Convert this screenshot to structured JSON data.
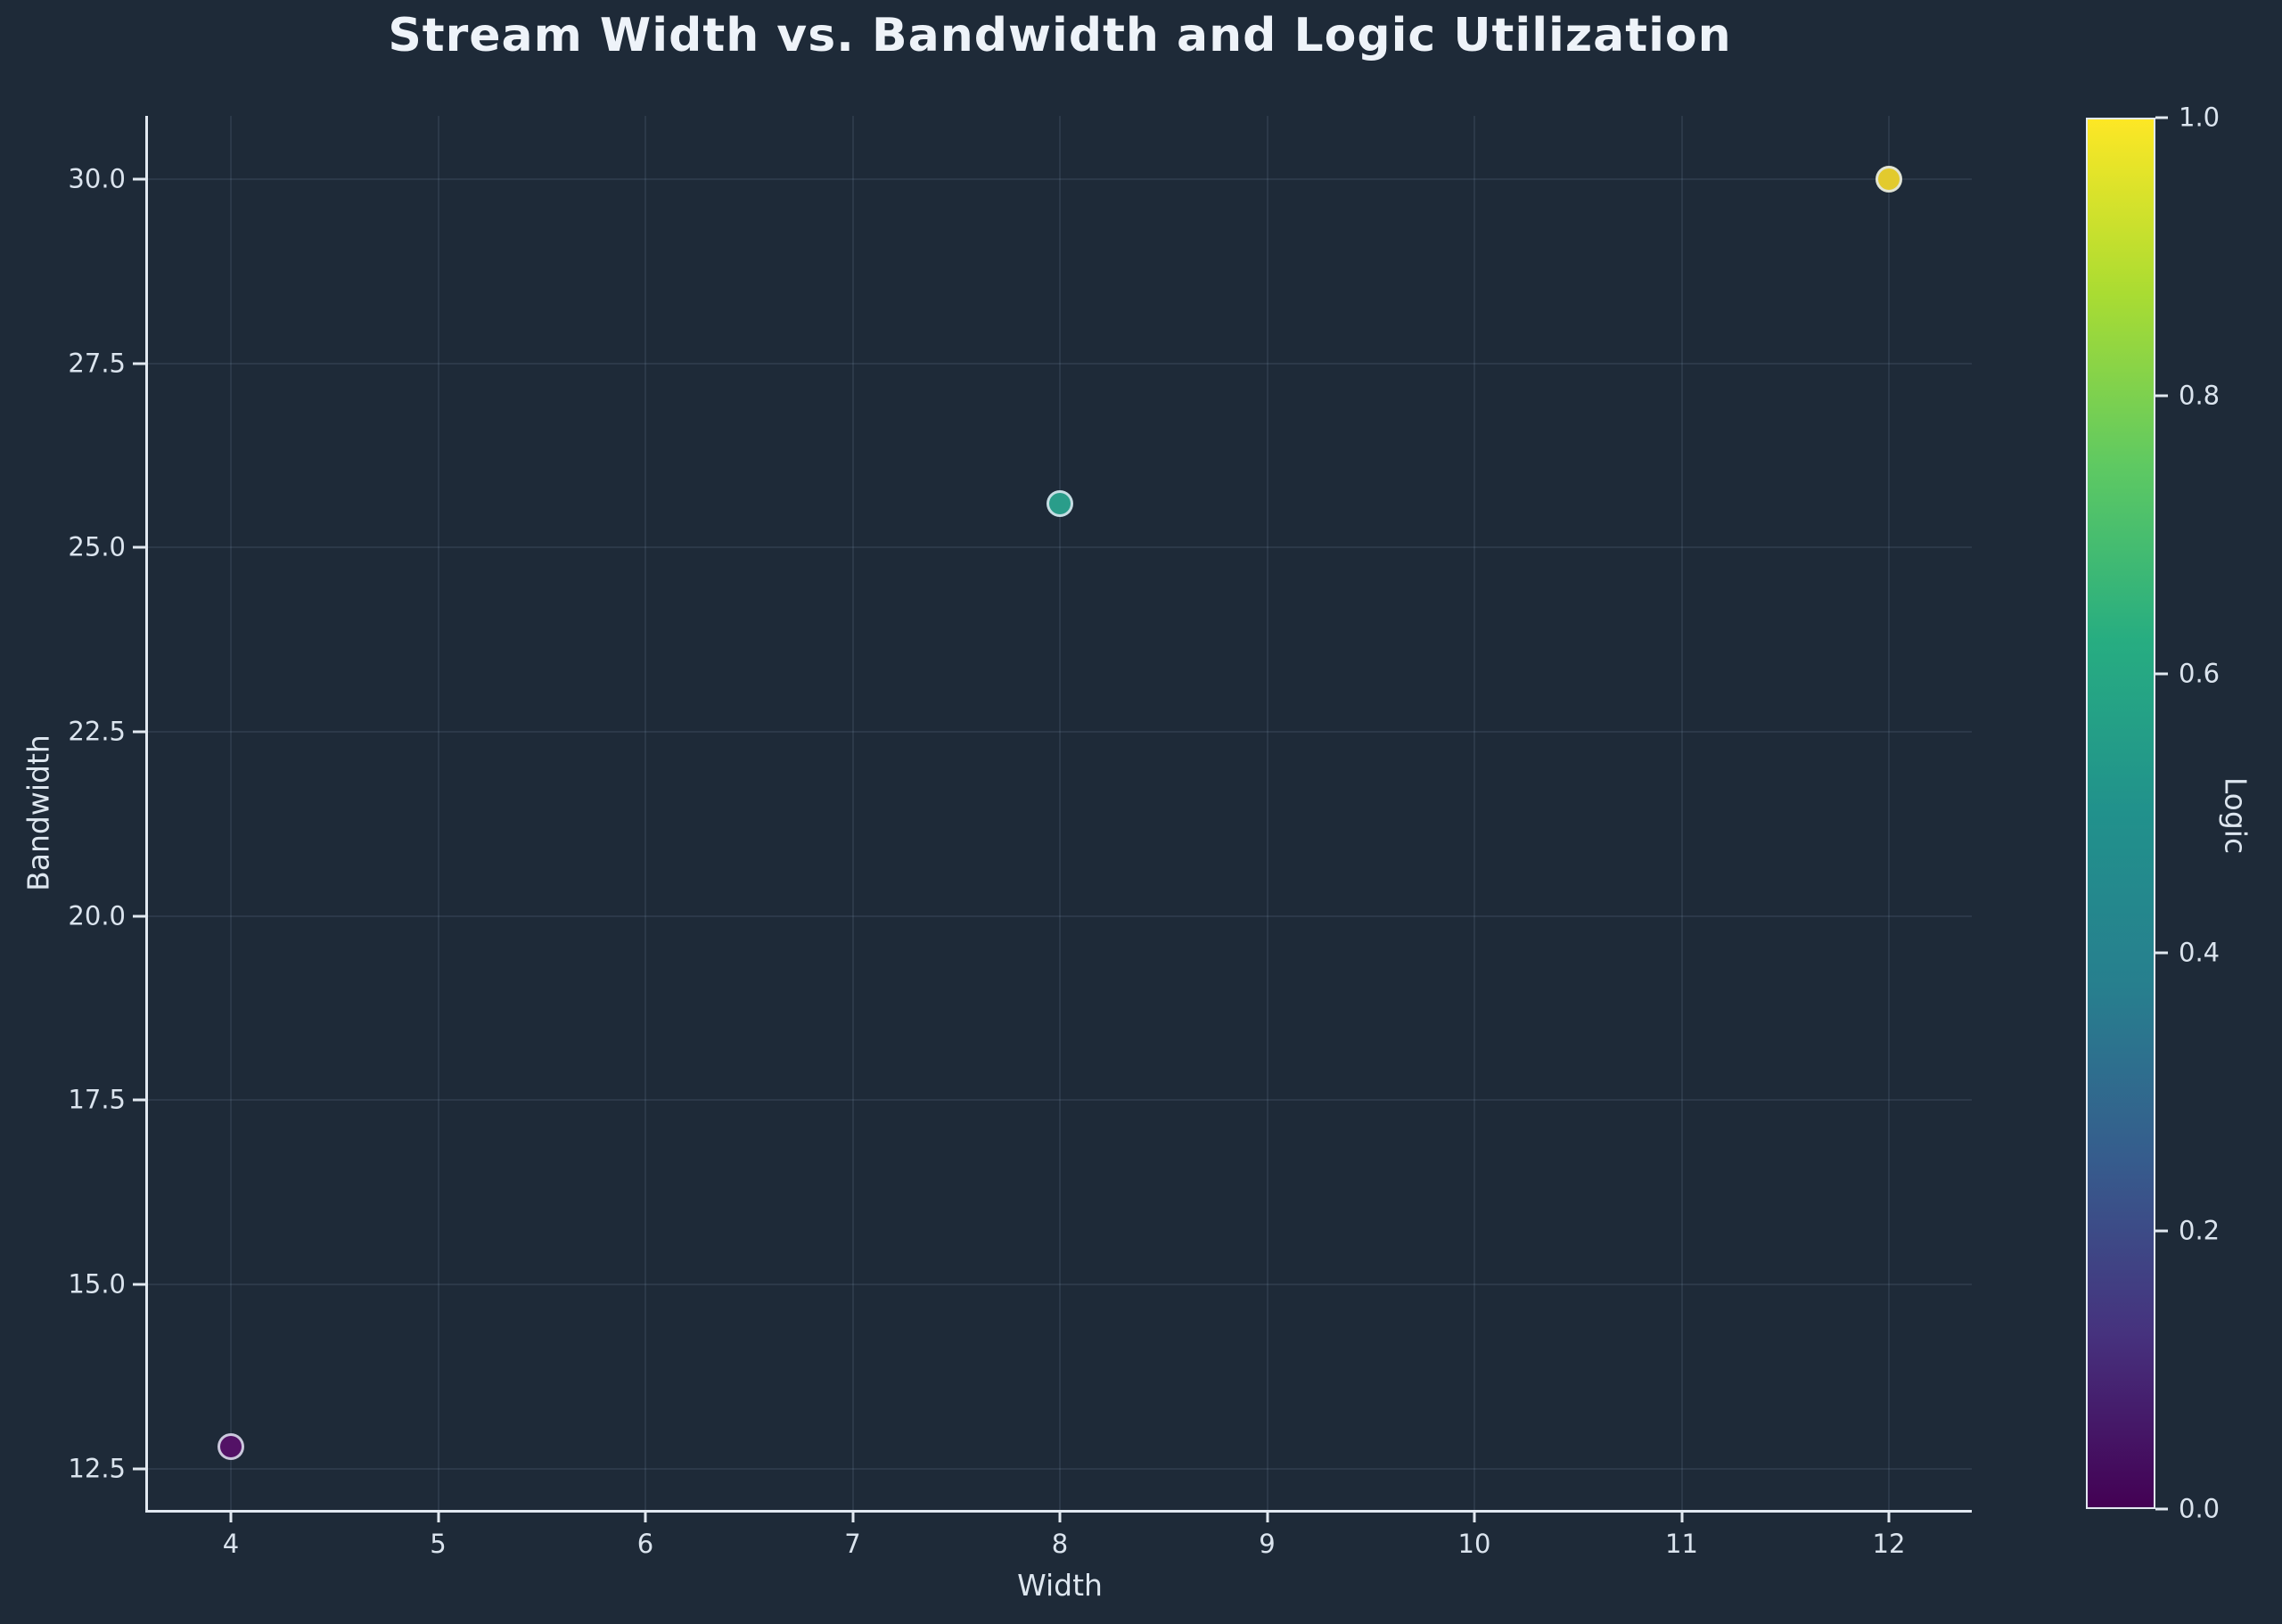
{
  "figure": {
    "background": "#1e2a38",
    "axis_color": "#e2e9f1",
    "text_color": "#dde6ef",
    "grid_color": "rgba(151,173,197,0.12)"
  },
  "chart_data": {
    "type": "scatter",
    "title": "Stream Width vs. Bandwidth and Logic Utilization",
    "xlabel": "Width",
    "ylabel": "Bandwidth",
    "xlim": [
      3.6,
      12.4
    ],
    "ylim": [
      11.94,
      30.86
    ],
    "x_ticks": [
      "4",
      "5",
      "6",
      "7",
      "8",
      "9",
      "10",
      "11",
      "12"
    ],
    "y_ticks": [
      "12.5",
      "15.0",
      "17.5",
      "20.0",
      "22.5",
      "25.0",
      "27.5",
      "30.0"
    ],
    "grid": true,
    "legend": "none",
    "points": [
      {
        "x": 4,
        "y": 12.8,
        "logic": 0.0,
        "color": "#531266"
      },
      {
        "x": 8,
        "y": 25.6,
        "logic": 0.55,
        "color": "#2a9d8a"
      },
      {
        "x": 12,
        "y": 30.0,
        "logic": 1.0,
        "color": "#e2ca2e"
      }
    ],
    "colorbar": {
      "label": "Logic",
      "min": 0.0,
      "max": 1.0,
      "ticks": [
        "0.0",
        "0.2",
        "0.4",
        "0.6",
        "0.8",
        "1.0"
      ],
      "colormap": "viridis",
      "gradient_stops": [
        "#440154",
        "#46327e",
        "#365c8d",
        "#277f8e",
        "#21918c",
        "#27ad81",
        "#5ec962",
        "#aadc32",
        "#fde725"
      ]
    }
  }
}
